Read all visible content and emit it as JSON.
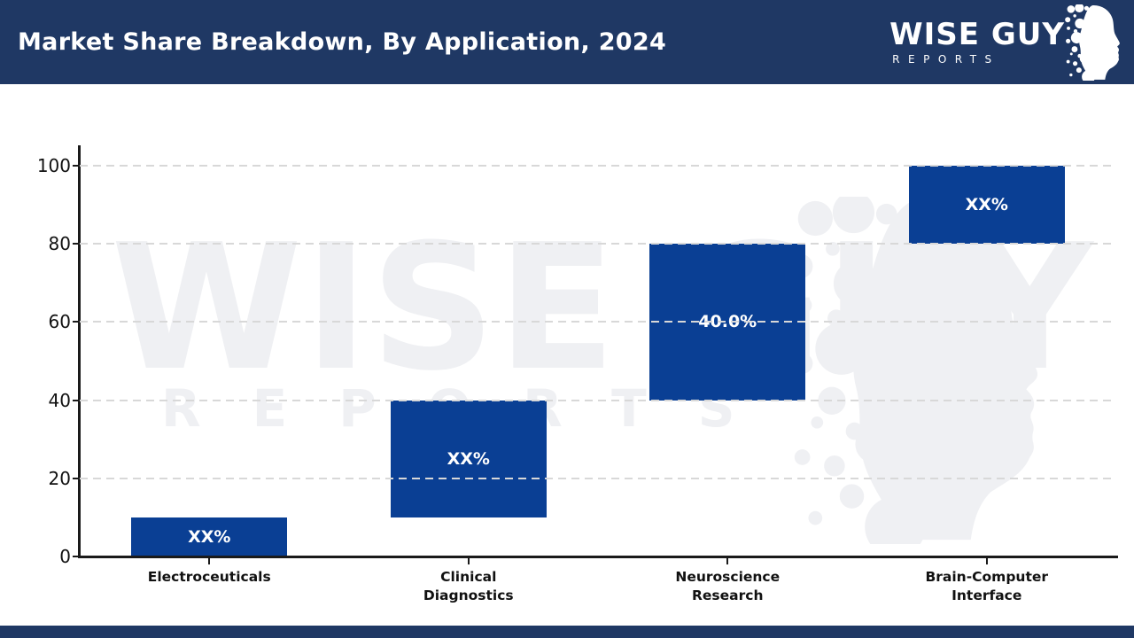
{
  "header": {
    "title": "Market Share Breakdown, By Application, 2024",
    "bg_color": "#1f3864",
    "text_color": "#ffffff"
  },
  "logo": {
    "line1": "WISE GUY",
    "line2": "REPORTS"
  },
  "watermark": {
    "line1": "WISE GUY",
    "line2": "REPORTS",
    "color": "#eff0f3"
  },
  "footer": {
    "bg_color": "#1f3864"
  },
  "chart_data": {
    "type": "bar",
    "subtype": "waterfall",
    "title": "Market Share Breakdown, By Application, 2024",
    "categories": [
      "Electroceuticals",
      "Clinical\nDiagnostics",
      "Neuroscience\nResearch",
      "Brain-Computer\nInterface"
    ],
    "series": [
      {
        "name": "Market share (%)",
        "starts": [
          0,
          10,
          40,
          80
        ],
        "ends": [
          10,
          40,
          80,
          100
        ],
        "values": [
          10,
          30,
          40,
          20
        ]
      }
    ],
    "bar_labels": [
      "XX%",
      "XX%",
      "40.0%",
      "XX%"
    ],
    "ylim": [
      0,
      100
    ],
    "yticks": [
      0,
      20,
      40,
      60,
      80,
      100
    ],
    "xlabel": "",
    "ylabel": "",
    "grid": true,
    "gridline_style": "dashed",
    "legend": false,
    "bar_color": "#0a3f94",
    "bar_label_color": "#ffffff",
    "axis_color": "#1a1a1a",
    "grid_color": "#d8d8d8"
  }
}
